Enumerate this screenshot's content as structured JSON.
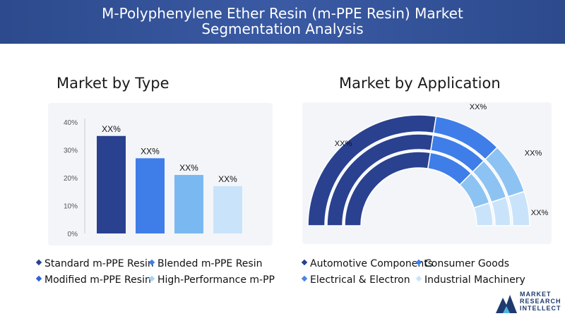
{
  "header": {
    "title_line1": "M-Polyphenylene Ether Resin (m-PPE Resin) Market",
    "title_line2": "Segmentation Analysis"
  },
  "left": {
    "title": "Market by Type",
    "legend": [
      {
        "label": "Standard m-PPE Resin",
        "color": "#2a4190"
      },
      {
        "label": "Blended m-PPE Resin",
        "color": "#3f7ee8"
      },
      {
        "label": "Modified m-PPE Resin",
        "color": "#2f63d4"
      },
      {
        "label": "High-Performance m-PP",
        "color": "#a8d3f5"
      }
    ]
  },
  "right": {
    "title": "Market by Application",
    "legend": [
      {
        "label": "Automotive Components",
        "color": "#2a4190"
      },
      {
        "label": "Consumer Goods",
        "color": "#3f7ee8"
      },
      {
        "label": "Electrical & Electron",
        "color": "#4a86e0"
      },
      {
        "label": "Industrial Machinery",
        "color": "#c9e4fa"
      }
    ]
  },
  "chart_data": [
    {
      "type": "bar",
      "title": "Market by Type",
      "categories": [
        "Standard m-PPE Resin",
        "Modified m-PPE Resin",
        "Blended m-PPE Resin",
        "High-Performance m-PP"
      ],
      "values": [
        35,
        27,
        21,
        17
      ],
      "data_labels": [
        "XX%",
        "XX%",
        "XX%",
        "XX%"
      ],
      "colors": [
        "#2a4190",
        "#3f7ee8",
        "#7ab8f2",
        "#c9e4fa"
      ],
      "yticks": [
        "0%",
        "10%",
        "20%",
        "30%",
        "40%"
      ],
      "ylim": [
        0,
        40
      ]
    },
    {
      "type": "pie",
      "title": "Market by Application",
      "categories": [
        "Automotive Components",
        "Consumer Goods",
        "Electrical & Electron",
        "Industrial Machinery"
      ],
      "values": [
        55,
        20,
        15,
        10
      ],
      "data_labels": [
        "XX%",
        "XX%",
        "XX%",
        "XX%"
      ],
      "colors": [
        "#2a4190",
        "#3f7ee8",
        "#8cc3f3",
        "#c9e4fa"
      ]
    }
  ],
  "logo": {
    "line1": "MARKET",
    "line2": "RESEARCH",
    "line3": "INTELLECT"
  }
}
